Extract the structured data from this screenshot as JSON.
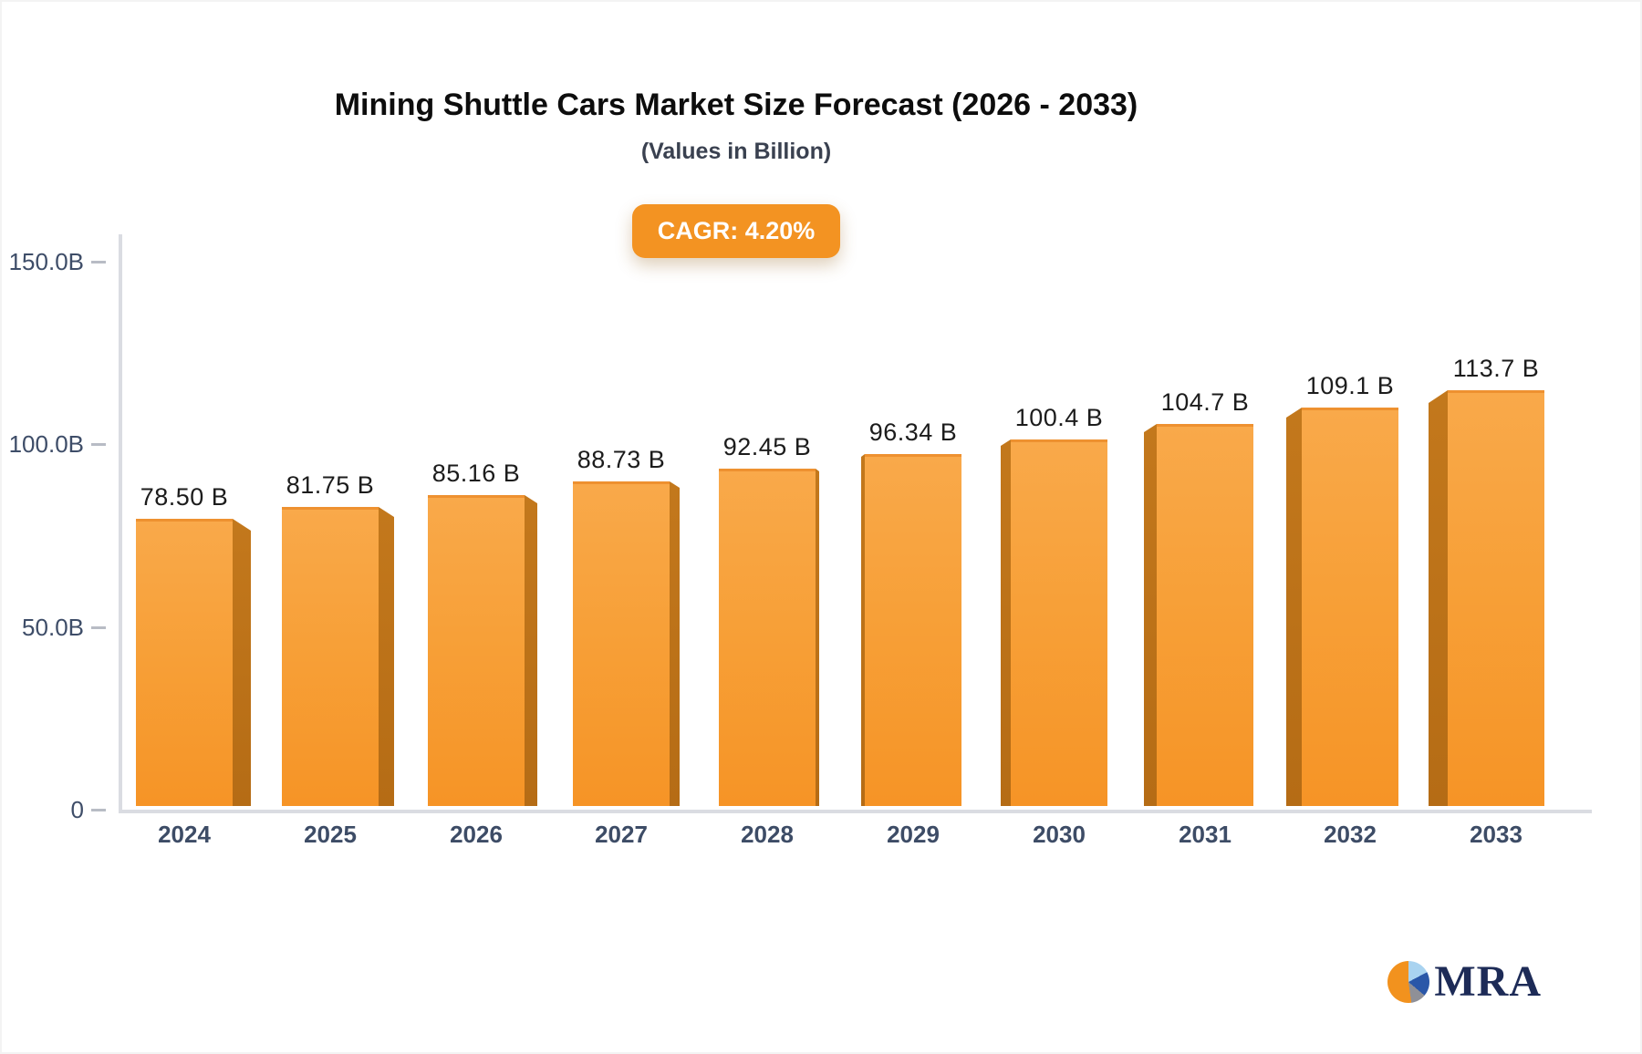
{
  "title": "Mining Shuttle Cars Market Size Forecast (2026 - 2033)",
  "subtitle": "(Values in Billion)",
  "badge": {
    "label": "CAGR: 4.20%"
  },
  "logo": {
    "text": "MRA"
  },
  "colors": {
    "bar_top": "#f9a94a",
    "bar_bottom": "#f69426",
    "bar_side": "#b97019",
    "badge_bg": "#f39322",
    "axis_line": "#dadce2",
    "axis_text": "#3e4d68",
    "value_text": "#1c1c1c",
    "logo_navy": "#1d2b57",
    "logo_orange": "#f2921e"
  },
  "chart_data": {
    "type": "bar",
    "title": "Mining Shuttle Cars Market Size Forecast (2026 - 2033)",
    "subtitle": "(Values in Billion)",
    "cagr": "4.20%",
    "categories": [
      "2024",
      "2025",
      "2026",
      "2027",
      "2028",
      "2029",
      "2030",
      "2031",
      "2032",
      "2033"
    ],
    "values": [
      78.5,
      81.75,
      85.16,
      88.73,
      92.45,
      96.34,
      100.4,
      104.7,
      109.1,
      113.7
    ],
    "value_labels": [
      "78.50 B",
      "81.75 B",
      "85.16 B",
      "88.73 B",
      "92.45 B",
      "96.34 B",
      "100.4 B",
      "104.7 B",
      "109.1 B",
      "113.7 B"
    ],
    "xlabel": "",
    "ylabel": "",
    "ylim": [
      0,
      150
    ],
    "yticks": [
      {
        "value": 150,
        "label": "150.0B"
      },
      {
        "value": 100,
        "label": "100.0B"
      },
      {
        "value": 50,
        "label": "50.0B"
      },
      {
        "value": 0,
        "label": "0"
      }
    ],
    "grid": false,
    "legend": false
  }
}
